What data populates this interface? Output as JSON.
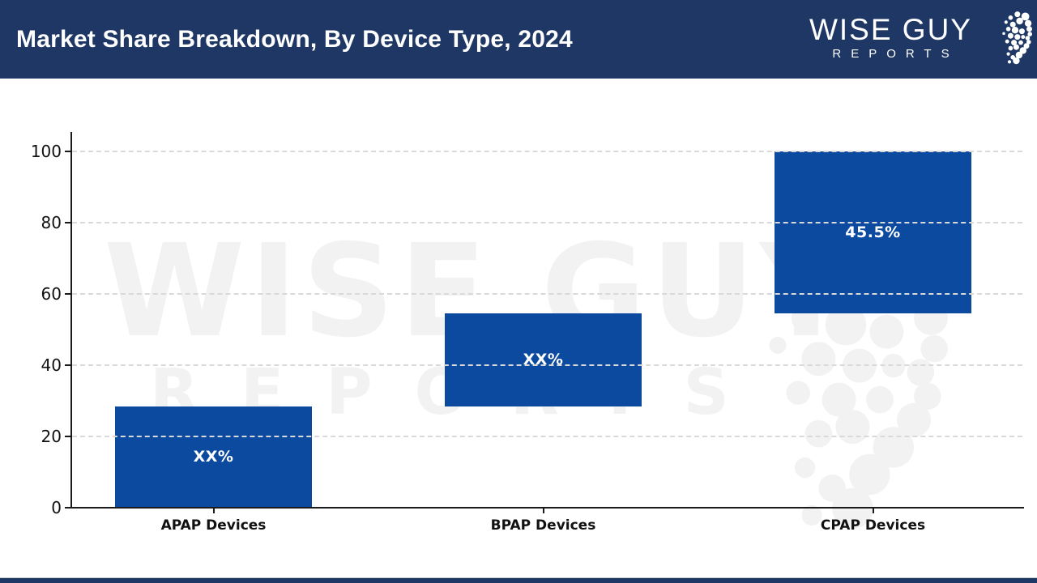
{
  "header": {
    "title": "Market Share Breakdown, By Device Type, 2024",
    "logo": {
      "line1": "WISE GUY",
      "line2": "REPORTS"
    }
  },
  "watermark": {
    "line1": "WISE GUY",
    "line2": "REPORTS"
  },
  "chart_data": {
    "type": "bar",
    "subtype": "stacked-waterfall",
    "title": "Market Share Breakdown, By Device Type, 2024",
    "categories": [
      "APAP Devices",
      "BPAP Devices",
      "CPAP Devices"
    ],
    "bars": [
      {
        "category": "APAP Devices",
        "start": 0,
        "end": 28.5,
        "value": 28.5,
        "value_label": "XX%"
      },
      {
        "category": "BPAP Devices",
        "start": 28.5,
        "end": 54.5,
        "value": 26.0,
        "value_label": "XX%"
      },
      {
        "category": "CPAP Devices",
        "start": 54.5,
        "end": 100,
        "value": 45.5,
        "value_label": "45.5%"
      }
    ],
    "yticks": [
      0,
      20,
      40,
      60,
      80,
      100
    ],
    "ylim": [
      0,
      105
    ],
    "xlabel": "",
    "ylabel": "",
    "grid": "horizontal-dashed",
    "legend": "none",
    "bar_color": "#0b4a9f",
    "bar_label_color": "#ffffff"
  },
  "colors": {
    "header_bg": "#1f3765",
    "footer_bg": "#1f3765",
    "bar": "#0b4a9f",
    "grid": "#d9d9d9",
    "axis_text": "#111111",
    "watermark": "#f2f2f2"
  }
}
